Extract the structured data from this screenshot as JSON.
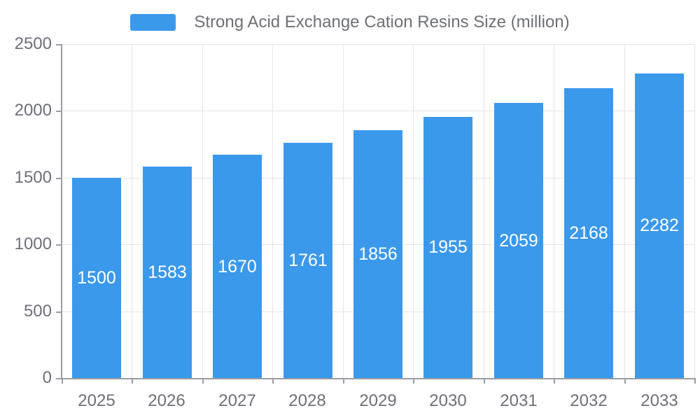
{
  "chart_data": {
    "type": "bar",
    "title": "Strong Acid Exchange Cation Resins Size (million)",
    "categories": [
      "2025",
      "2026",
      "2027",
      "2028",
      "2029",
      "2030",
      "2031",
      "2032",
      "2033"
    ],
    "values": [
      1500,
      1583,
      1670,
      1761,
      1856,
      1955,
      2059,
      2168,
      2282
    ],
    "xlabel": "",
    "ylabel": "",
    "ylim": [
      0,
      2500
    ],
    "ytick_step": 500,
    "ytick_labels": [
      "0",
      "500",
      "1000",
      "1500",
      "2000",
      "2500"
    ],
    "grid": true,
    "legend_position": "top",
    "colors": {
      "bar": "#3b99ec",
      "bar_value_label": "#ffffff",
      "axis_label": "#6e7079",
      "legend_text": "#6d7075",
      "grid_line": "#e2e5eb",
      "axis_line": "#9a9da3"
    }
  }
}
